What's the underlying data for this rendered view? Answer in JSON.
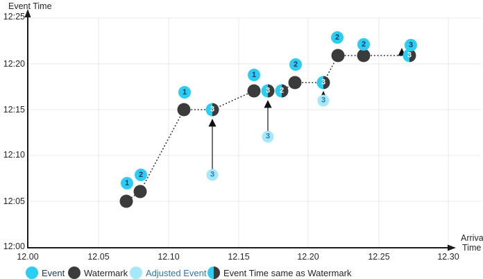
{
  "axes": {
    "y_title": "Event Time",
    "x_title_line1": "Arrival",
    "x_title_line2": "Time",
    "y_ticks": [
      "12:25",
      "12:20",
      "12:15",
      "12:10",
      "12:05",
      "12:00"
    ],
    "x_ticks": [
      "12.00",
      "12.05",
      "12.10",
      "12.15",
      "12.20",
      "12.25",
      "12.30"
    ]
  },
  "legend": {
    "items": [
      {
        "label": "Event",
        "type": "event"
      },
      {
        "label": "Watermark",
        "type": "watermark"
      },
      {
        "label": "Adjusted Event",
        "type": "adjusted"
      },
      {
        "label": "Event Time same as Watermark",
        "type": "same"
      }
    ]
  },
  "colors": {
    "event": "#2BCDF2",
    "watermark": "#3B3B3B",
    "adjusted_event": "#A5E8F9",
    "event_number_text": "#1F3864",
    "adjusted_number_text": "#2E75B6",
    "same_number_text": "#FFFFFF",
    "gridline": "#E8E8E8",
    "axis": "#1A1A1A"
  },
  "chart_data": {
    "type": "scatter",
    "title": "",
    "xlabel": "Arrival Time",
    "ylabel": "Event Time",
    "x_range": [
      "12.00",
      "12.30"
    ],
    "y_range": [
      "12:00",
      "12:25"
    ],
    "grid": true,
    "legend_position": "bottom",
    "series": [
      {
        "name": "Watermark",
        "type": "watermark",
        "points": [
          {
            "label": "",
            "arrival": "12.07",
            "event_time": "12:05"
          },
          {
            "label": "",
            "arrival": "12.08",
            "event_time": "12:06"
          },
          {
            "label": "",
            "arrival": "12.11",
            "event_time": "12:15"
          },
          {
            "label": "",
            "arrival": "12.16",
            "event_time": "12:17"
          },
          {
            "label": "",
            "arrival": "12.19",
            "event_time": "12:18"
          },
          {
            "label": "",
            "arrival": "12.22",
            "event_time": "12:21"
          },
          {
            "label": "",
            "arrival": "12.24",
            "event_time": "12:21"
          }
        ]
      },
      {
        "name": "Event Time same as Watermark",
        "type": "same",
        "points": [
          {
            "label": "3",
            "arrival": "12.13",
            "event_time": "12:15"
          },
          {
            "label": "3",
            "arrival": "12.17",
            "event_time": "12:17"
          },
          {
            "label": "2",
            "arrival": "12.18",
            "event_time": "12:17"
          },
          {
            "label": "3",
            "arrival": "12.21",
            "event_time": "12:18"
          },
          {
            "label": "3",
            "arrival": "12.27",
            "event_time": "12:21"
          }
        ]
      },
      {
        "name": "Adjusted Event",
        "type": "adjusted",
        "points": [
          {
            "label": "3",
            "arrival": "12.13",
            "event_time": "12:08",
            "adjusted_to": "12:15"
          },
          {
            "label": "3",
            "arrival": "12.17",
            "event_time": "12:12",
            "adjusted_to": "12:17"
          },
          {
            "label": "3",
            "arrival": "12.21",
            "event_time": "12:16",
            "adjusted_to": "12:18"
          }
        ]
      },
      {
        "name": "Event",
        "type": "event",
        "points": [
          {
            "label": "1",
            "arrival": "12.07",
            "event_time": "12:07"
          },
          {
            "label": "2",
            "arrival": "12.08",
            "event_time": "12:08"
          },
          {
            "label": "1",
            "arrival": "12.11",
            "event_time": "12:17"
          },
          {
            "label": "1",
            "arrival": "12.16",
            "event_time": "12:19"
          },
          {
            "label": "2",
            "arrival": "12.19",
            "event_time": "12:20"
          },
          {
            "label": "2",
            "arrival": "12.22",
            "event_time": "12:23"
          },
          {
            "label": "2",
            "arrival": "12.24",
            "event_time": "12:22"
          },
          {
            "label": "3",
            "arrival": "12.27",
            "event_time": "12:22"
          }
        ]
      }
    ],
    "watermark_line": [
      [
        "12.07",
        "12:05"
      ],
      [
        "12.08",
        "12:06"
      ],
      [
        "12.11",
        "12:15"
      ],
      [
        "12.13",
        "12:15"
      ],
      [
        "12.16",
        "12:17"
      ],
      [
        "12.17",
        "12:17"
      ],
      [
        "12.18",
        "12:17"
      ],
      [
        "12.19",
        "12:18"
      ],
      [
        "12.21",
        "12:18"
      ],
      [
        "12.22",
        "12:21"
      ],
      [
        "12.24",
        "12:21"
      ],
      [
        "12.27",
        "12:21"
      ]
    ],
    "adjustment_arrows": [
      {
        "arrival": "12.13",
        "from": "12:08",
        "to": "12:15"
      },
      {
        "arrival": "12.17",
        "from": "12:12",
        "to": "12:17"
      },
      {
        "arrival": "12.21",
        "from": "12:16",
        "to": "12:18"
      },
      {
        "arrival": "12.27",
        "from": "12:21",
        "to": "12:22"
      }
    ]
  }
}
